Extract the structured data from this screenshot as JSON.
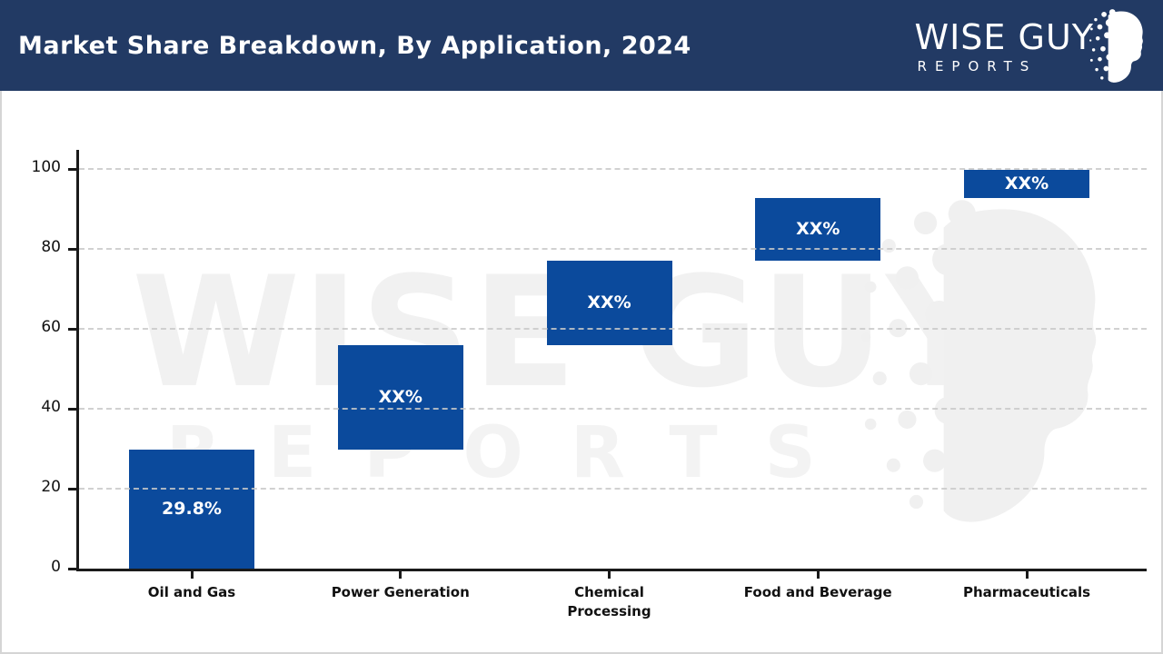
{
  "header": {
    "title": "Market Share Breakdown, By Application, 2024",
    "bg_color": "#223a64",
    "logo": {
      "line1": "WISE GUY",
      "line2": "REPORTS"
    }
  },
  "watermark": {
    "line1": "WISE GUY",
    "line2": "REPORTS"
  },
  "chart_data": {
    "type": "bar",
    "subtype": "floating-waterfall",
    "title": "Market Share Breakdown, By Application, 2024",
    "xlabel": "",
    "ylabel": "",
    "categories": [
      "Oil and Gas",
      "Power Generation",
      "Chemical\nProcessing",
      "Food and Beverage",
      "Pharmaceuticals"
    ],
    "bars": [
      {
        "category": "Oil and Gas",
        "start": 0,
        "end": 29.8,
        "label": "29.8%"
      },
      {
        "category": "Power Generation",
        "start": 29.8,
        "end": 55.9,
        "label": "XX%"
      },
      {
        "category": "Chemical\nProcessing",
        "start": 55.9,
        "end": 77.1,
        "label": "XX%"
      },
      {
        "category": "Food and Beverage",
        "start": 77.1,
        "end": 92.8,
        "label": "XX%"
      },
      {
        "category": "Pharmaceuticals",
        "start": 92.8,
        "end": 99.8,
        "label": "XX%"
      }
    ],
    "ylim": [
      0,
      100
    ],
    "yticks": [
      0,
      20,
      40,
      60,
      80,
      100
    ],
    "grid": "horizontal-dashed",
    "legend": "none",
    "bar_color": "#0b4a9c",
    "bar_label_color": "#ffffff",
    "axis_color": "#1a1a1a",
    "gridline_color": "#d3d3d3",
    "tick_label_color": "#111111"
  }
}
